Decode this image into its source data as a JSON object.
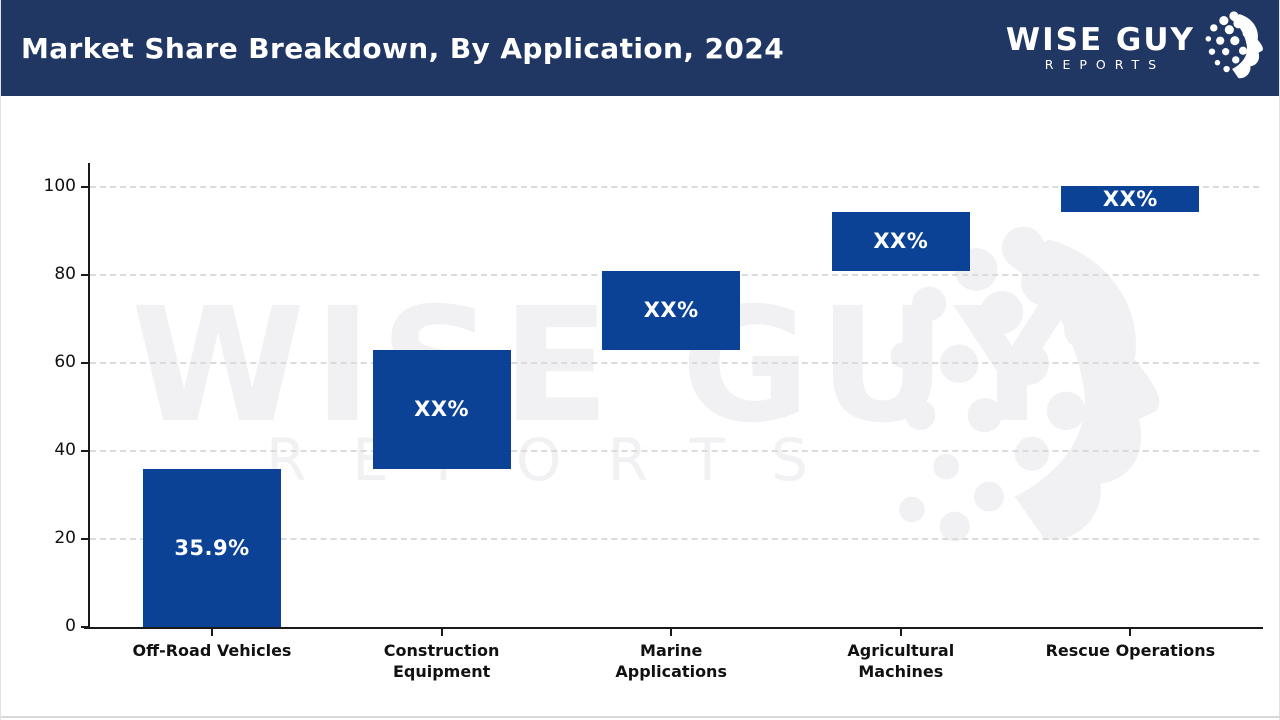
{
  "header": {
    "title": "Market Share Breakdown, By Application, 2024",
    "logo": {
      "line1": "WISE GUY",
      "line2": "REPORTS"
    }
  },
  "watermark": {
    "line1": "WISE GUY",
    "line2": "REPORTS"
  },
  "chart_data": {
    "type": "bar",
    "variant": "floating-waterfall",
    "title": "Market Share Breakdown, By Application, 2024",
    "categories": [
      "Off-Road Vehicles",
      "Construction Equipment",
      "Marine Applications",
      "Agricultural Machines",
      "Rescue Operations"
    ],
    "category_lines": [
      [
        "Off-Road Vehicles"
      ],
      [
        "Construction",
        "Equipment"
      ],
      [
        "Marine",
        "Applications"
      ],
      [
        "Agricultural",
        "Machines"
      ],
      [
        "Rescue Operations"
      ]
    ],
    "segments": [
      {
        "category": "Off-Road Vehicles",
        "start": 0,
        "end": 35.9,
        "label": "35.9%"
      },
      {
        "category": "Construction Equipment",
        "start": 35.9,
        "end": 63,
        "label": "XX%"
      },
      {
        "category": "Marine Applications",
        "start": 63,
        "end": 81,
        "label": "XX%"
      },
      {
        "category": "Agricultural Machines",
        "start": 81,
        "end": 94.3,
        "label": "XX%"
      },
      {
        "category": "Rescue Operations",
        "start": 94.3,
        "end": 100.2,
        "label": "XX%"
      }
    ],
    "yticks": [
      0,
      20,
      40,
      60,
      80,
      100
    ],
    "ylim": [
      0,
      105
    ],
    "xlabel": "",
    "ylabel": "",
    "grid": "horizontal-dashed",
    "legend": "none",
    "bar_color": "#0B4296",
    "bar_label_color": "#FFFFFF"
  },
  "colors": {
    "header_bg": "#203764",
    "axis": "#1A1A1A",
    "gridline": "#DBDBDB",
    "watermark": "#F1F1F4",
    "border": "#D9D9D9"
  }
}
